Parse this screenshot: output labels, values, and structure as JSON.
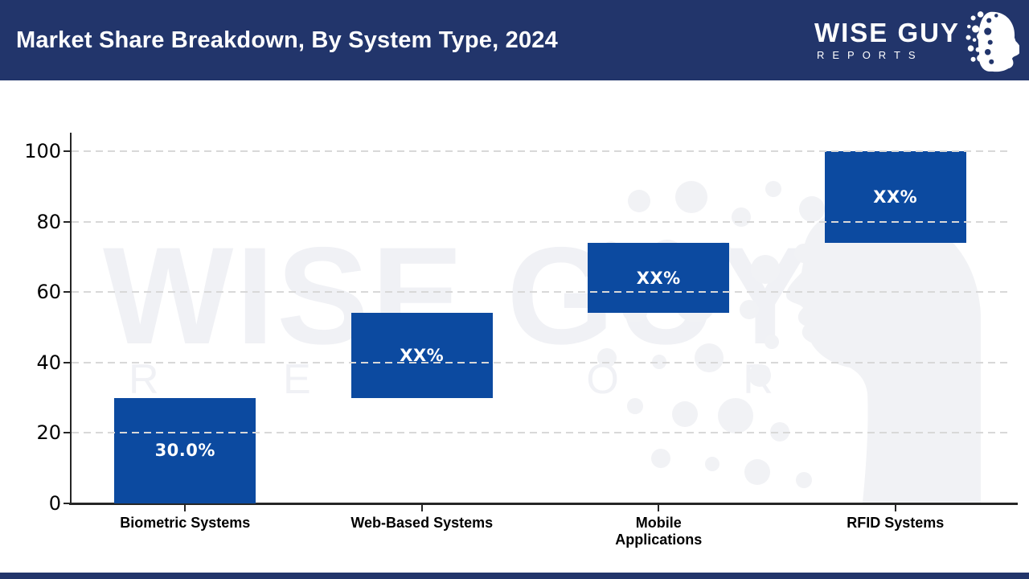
{
  "header": {
    "title": "Market Share Breakdown, By System Type, 2024",
    "logo": {
      "name": "WISE GUY",
      "sub": "REPORTS"
    }
  },
  "watermark": {
    "name": "WISE GUY",
    "sub": "R  E  P  O  R  T  S"
  },
  "footer": {
    "bar_color": "#22356b"
  },
  "chart_data": {
    "type": "bar",
    "subtype": "waterfall",
    "title": "Market Share Breakdown, By System Type, 2024",
    "xlabel": "",
    "ylabel": "",
    "categories": [
      "Biometric Systems",
      "Web-Based Systems",
      "Mobile Applications",
      "RFID Systems"
    ],
    "bars": [
      {
        "category": "Biometric Systems",
        "display": "Biometric Systems",
        "start": 0,
        "end": 30,
        "value": 30,
        "label": "30.0%"
      },
      {
        "category": "Web-Based Systems",
        "display": "Web-Based Systems",
        "start": 30,
        "end": 54,
        "value": 24,
        "label": "XX%"
      },
      {
        "category": "Mobile Applications",
        "display": "Mobile\nApplications",
        "start": 54,
        "end": 74,
        "value": 20,
        "label": "XX%"
      },
      {
        "category": "RFID Systems",
        "display": "RFID Systems",
        "start": 74,
        "end": 100,
        "value": 26,
        "label": "XX%"
      }
    ],
    "yticks": [
      0,
      20,
      40,
      60,
      80,
      100
    ],
    "ylim": [
      0,
      105
    ],
    "grid": "horizontal-dashed",
    "legend": false,
    "bar_color": "#0c4aa0",
    "bar_label_color": "#ffffff",
    "axis_color": "#262626",
    "gridline_color": "#d8d8d8",
    "header_color": "#22356b",
    "watermark_color": "#f0f1f5"
  }
}
